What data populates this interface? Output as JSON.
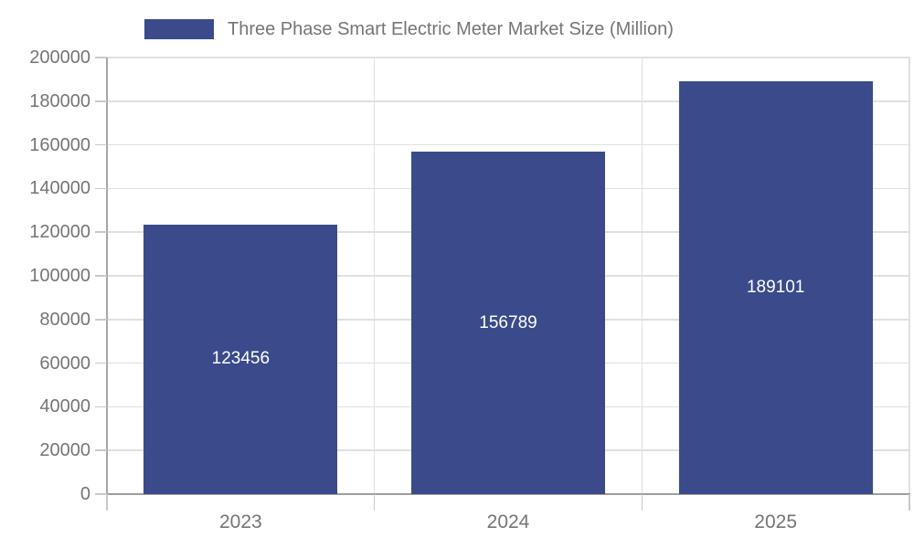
{
  "legend": {
    "label": "Three Phase Smart Electric Meter Market Size (Million)"
  },
  "chart_data": {
    "type": "bar",
    "title": "Three Phase Smart Electric Meter Market Size (Million)",
    "series_name": "Three Phase Smart Electric Meter Market Size (Million)",
    "categories": [
      "2023",
      "2024",
      "2025"
    ],
    "values": [
      123456,
      156789,
      189101
    ],
    "value_labels": [
      "123456",
      "156789",
      "189101"
    ],
    "xlabel": "",
    "ylabel": "",
    "ylim": [
      0,
      200000
    ],
    "ytick_step": 20000,
    "ytick_labels": [
      "0",
      "20000",
      "40000",
      "60000",
      "80000",
      "100000",
      "120000",
      "140000",
      "160000",
      "180000",
      "200000"
    ],
    "grid": true,
    "legend_position": "top",
    "value_labels_inside_bars": true,
    "colors": {
      "bar": "#3a4a8a",
      "value_label": "#ffffff",
      "axis_text": "#757575",
      "legend_text": "#757575",
      "gridline": "#e0e0e0",
      "axis_line": "#9e9e9e",
      "tick": "#c9c9c9",
      "background": "#ffffff"
    }
  }
}
